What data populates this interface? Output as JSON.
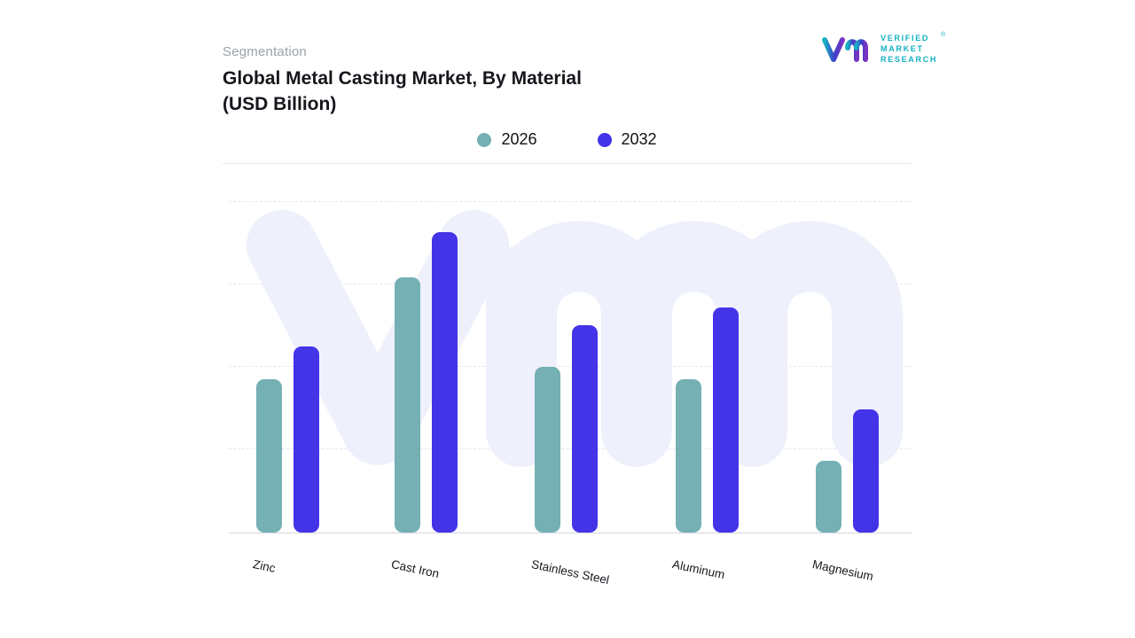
{
  "header": {
    "eyebrow": "Segmentation",
    "title_line1": "Global Metal Casting Market, By Material",
    "title_line2": "(USD Billion)"
  },
  "logo": {
    "line1": "VERIFIED",
    "line2": "MARKET",
    "line3": "RESEARCH",
    "registered": "®",
    "text_color": "#14b1c2"
  },
  "legend": [
    {
      "label": "2026",
      "color": "#74b0b4"
    },
    {
      "label": "2032",
      "color": "#4334e8"
    }
  ],
  "chart_data": {
    "type": "bar",
    "title": "Global Metal Casting Market, By Material (USD Billion)",
    "ylabel": "USD Billion",
    "categories": [
      "Zinc",
      "Cast Iron",
      "Stainless Steel",
      "Aluminum",
      "Magnesium"
    ],
    "series": [
      {
        "name": "2026",
        "color": "#74b0b4",
        "values": [
          51,
          85,
          55,
          51,
          24
        ]
      },
      {
        "name": "2032",
        "color": "#4334e8",
        "values": [
          62,
          100,
          69,
          75,
          41
        ]
      }
    ],
    "ylim": [
      0,
      110
    ],
    "y_tick_labels_visible": false,
    "values_estimated_from_bar_heights": true,
    "grid": "horizontal dashed",
    "legend_position": "top center"
  }
}
